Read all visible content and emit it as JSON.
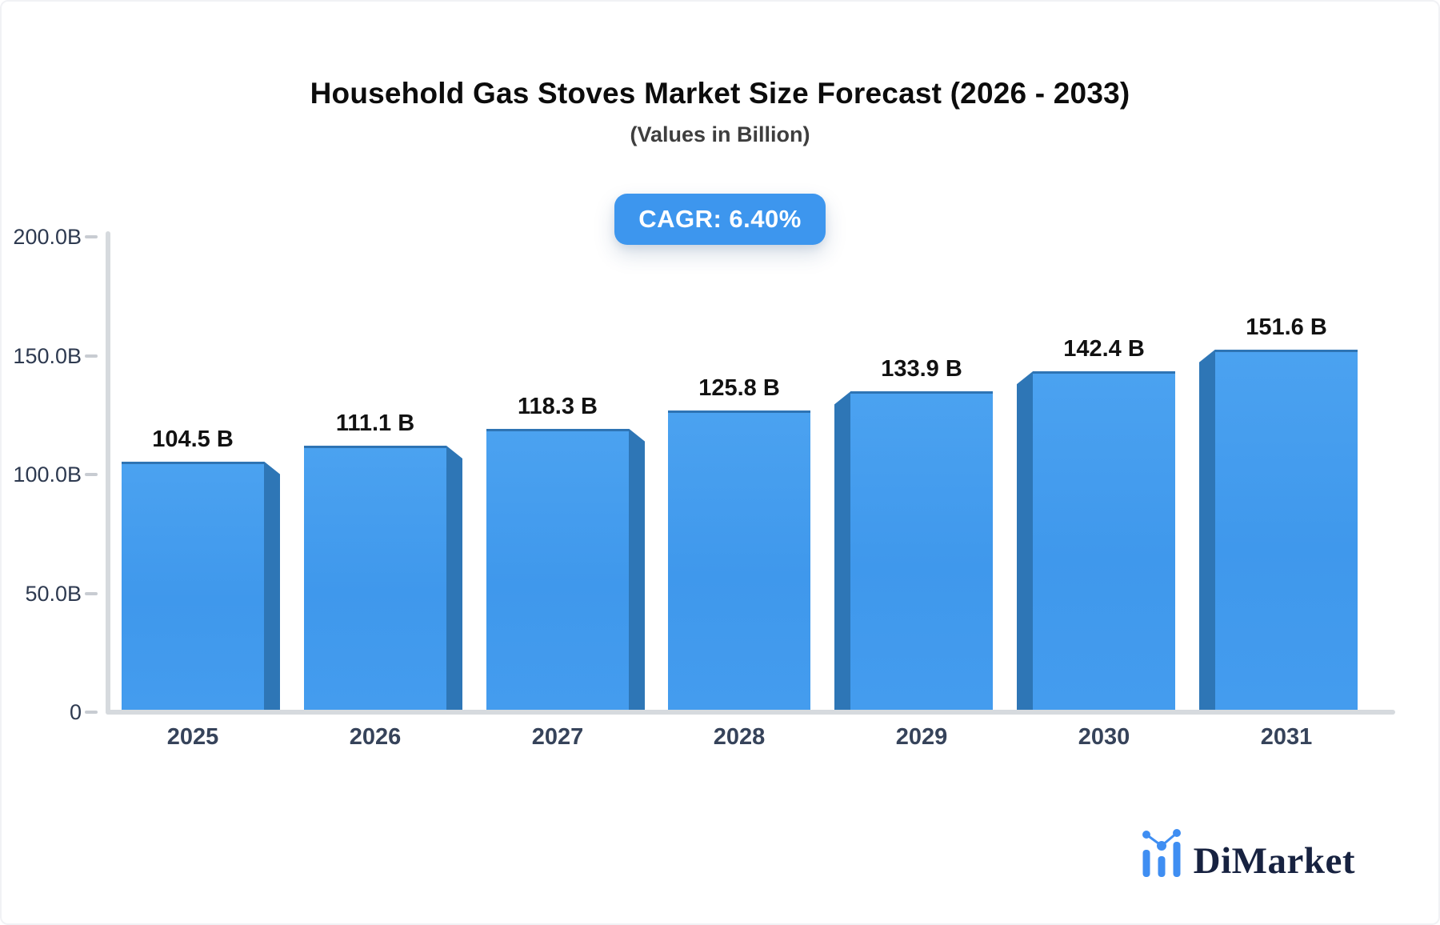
{
  "header": {
    "title": "Household Gas Stoves Market Size Forecast (2026 - 2033)",
    "subtitle": "(Values in Billion)",
    "cagr_label": "CAGR: 6.40%"
  },
  "chart_data": {
    "type": "bar",
    "title": "Household Gas Stoves Market Size Forecast (2026 - 2033)",
    "subtitle": "(Values in Billion)",
    "cagr": "CAGR: 6.40%",
    "unit": "Billion",
    "categories": [
      "2025",
      "2026",
      "2027",
      "2028",
      "2029",
      "2030",
      "2031"
    ],
    "values": [
      104.5,
      111.1,
      118.3,
      125.8,
      133.9,
      142.4,
      151.6
    ],
    "value_labels": [
      "104.5 B",
      "111.1 B",
      "118.3 B",
      "125.8 B",
      "133.9 B",
      "142.4 B",
      "151.6 B"
    ],
    "ylim": [
      0,
      200
    ],
    "ytick_values": [
      0,
      50,
      100,
      150,
      200
    ],
    "ytick_labels": [
      "0",
      "50.0B",
      "100.0B",
      "150.0B",
      "200.0B"
    ],
    "grid": false,
    "legend": false,
    "xlabel": "",
    "ylabel": "",
    "bar_face_color": "#429BEE",
    "bar_side_color": "#2E76B6",
    "bar_top_edge_color": "#2E74B4",
    "axis_line_color": "#D6DADE"
  },
  "footer": {
    "logo_text": "DiMarket"
  },
  "colors": {
    "badge_bg": "#3D96EE",
    "badge_text": "#FFFFFF",
    "logo_blue": "#3F8EF2",
    "logo_text_color": "#172240"
  }
}
